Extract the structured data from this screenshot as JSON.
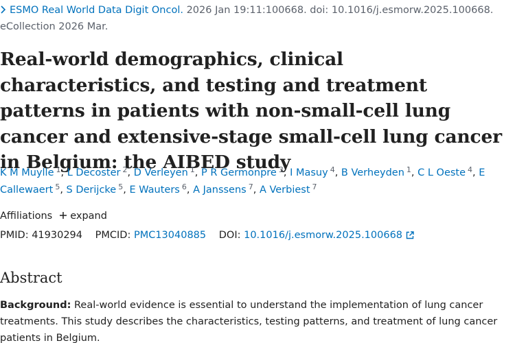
{
  "citation": {
    "journal": "ESMO Real World Data Digit Oncol.",
    "details": "2026 Jan 19:11:100668. doi: 10.1016/j.esmorw.2025.100668. eCollection 2026 Mar."
  },
  "title": "Real-world demographics, clinical characteristics, and testing and treatment patterns in patients with non-small-cell lung cancer and extensive-stage small-cell lung cancer in Belgium: the AIBED study",
  "authors": [
    {
      "name": "K M Muylle",
      "aff": 1
    },
    {
      "name": "L Decoster",
      "aff": 2
    },
    {
      "name": "D Verleyen",
      "aff": 1
    },
    {
      "name": "P R Germonpre",
      "aff": 3
    },
    {
      "name": "I Masuy",
      "aff": 4
    },
    {
      "name": "B Verheyden",
      "aff": 1
    },
    {
      "name": "C L Oeste",
      "aff": 4
    },
    {
      "name": "E Callewaert",
      "aff": 5
    },
    {
      "name": "S Derijcke",
      "aff": 5
    },
    {
      "name": "E Wauters",
      "aff": 6
    },
    {
      "name": "A Janssens",
      "aff": 7
    },
    {
      "name": "A Verbiest",
      "aff": 7
    }
  ],
  "affiliations": {
    "label": "Affiliations",
    "toggle": "expand"
  },
  "identifiers": {
    "pmid_label": "PMID:",
    "pmid": "41930294",
    "pmcid_label": "PMCID:",
    "pmcid": "PMC13040885",
    "doi_label": "DOI:",
    "doi": "10.1016/j.esmorw.2025.100668"
  },
  "abstract": {
    "heading": "Abstract",
    "background_label": "Background:",
    "background_text": "Real-world evidence is essential to understand the implementation of lung cancer treatments. This study describes the characteristics, testing patterns, and treatment of lung cancer patients in Belgium."
  }
}
